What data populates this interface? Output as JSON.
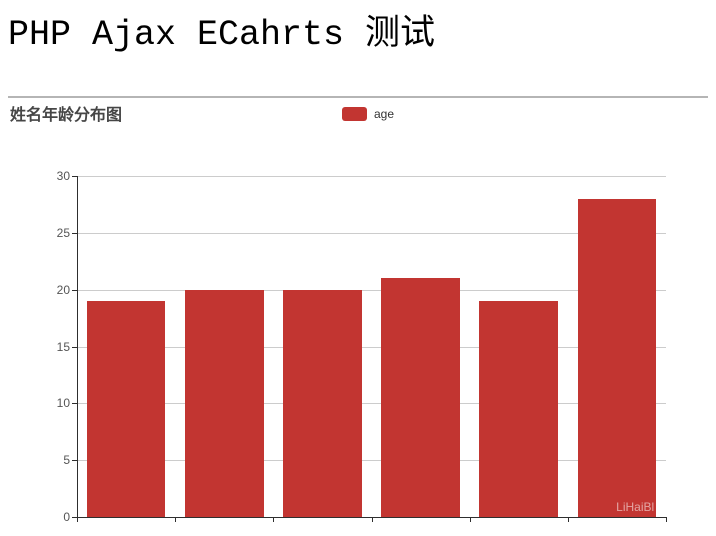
{
  "page": {
    "title": "PHP Ajax ECahrts 测试"
  },
  "chart_data": {
    "type": "bar",
    "title": "姓名年龄分布图",
    "series": [
      {
        "name": "age",
        "color": "#c23531",
        "values": [
          19,
          20,
          20,
          21,
          19,
          28
        ]
      }
    ],
    "ylim": [
      0,
      30
    ],
    "yticks": [
      0,
      5,
      10,
      15,
      20,
      25,
      30
    ],
    "ytick_labels": [
      "0",
      "5",
      "10",
      "15",
      "20",
      "25",
      "30"
    ],
    "grid": true,
    "legend": {
      "position": "top-center",
      "items": [
        "age"
      ]
    },
    "watermark": "LiHaiBl",
    "colors": {
      "bar": "#c23531",
      "axis_line": "#2e2e2e",
      "grid_line": "#cccccc",
      "axis_label": "#555555",
      "title": "#464646",
      "legend_text": "#333333"
    }
  }
}
